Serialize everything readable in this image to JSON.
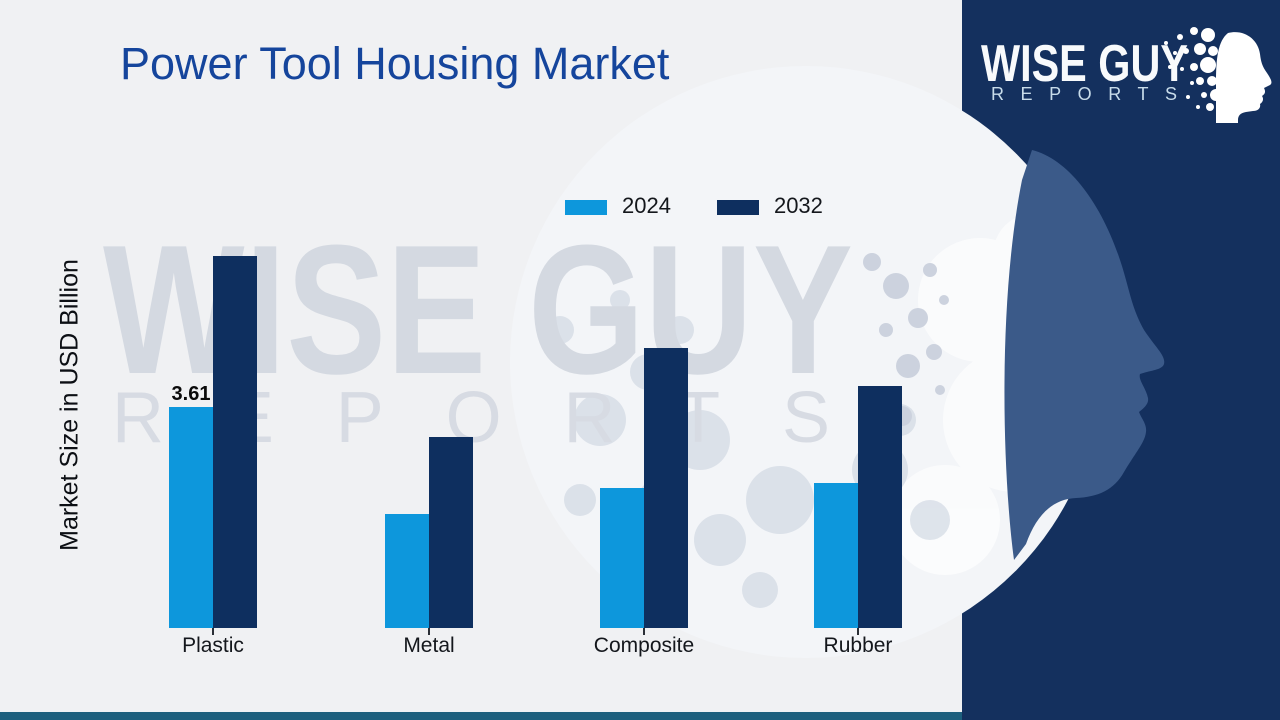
{
  "title": "Power Tool Housing Market",
  "brand": {
    "line1": "WISE GUY",
    "line2": "REPORTS"
  },
  "watermark": {
    "line1": "WISE GUY",
    "line2": "REPORTS"
  },
  "chart_data": {
    "type": "bar",
    "title": "Power Tool Housing Market",
    "ylabel": "Market Size in USD Billion",
    "xlabel": "",
    "categories": [
      "Plastic",
      "Metal",
      "Composite",
      "Rubber"
    ],
    "series": [
      {
        "name": "2024",
        "color": "#0d97dc",
        "values": [
          3.61,
          1.86,
          2.29,
          2.37
        ]
      },
      {
        "name": "2032",
        "color": "#0e2f5f",
        "values": [
          6.08,
          3.12,
          4.58,
          3.96
        ]
      }
    ],
    "ylim": [
      0,
      6.5
    ],
    "grid": false,
    "legend_position": "top-center",
    "data_labels": [
      {
        "series": "2024",
        "category": "Plastic",
        "value": "3.61"
      }
    ]
  },
  "colors": {
    "background": "#f0f1f3",
    "series_2024": "#0d97dc",
    "series_2032": "#0e2f5f",
    "title_text": "#15459c",
    "side_panel": "#14305e",
    "bottom_bar": "#1d5f7d",
    "watermark_text": "#d4d9e1",
    "circle_fill": "#f3f5f8",
    "face_silhouette": "#3b5a89"
  }
}
